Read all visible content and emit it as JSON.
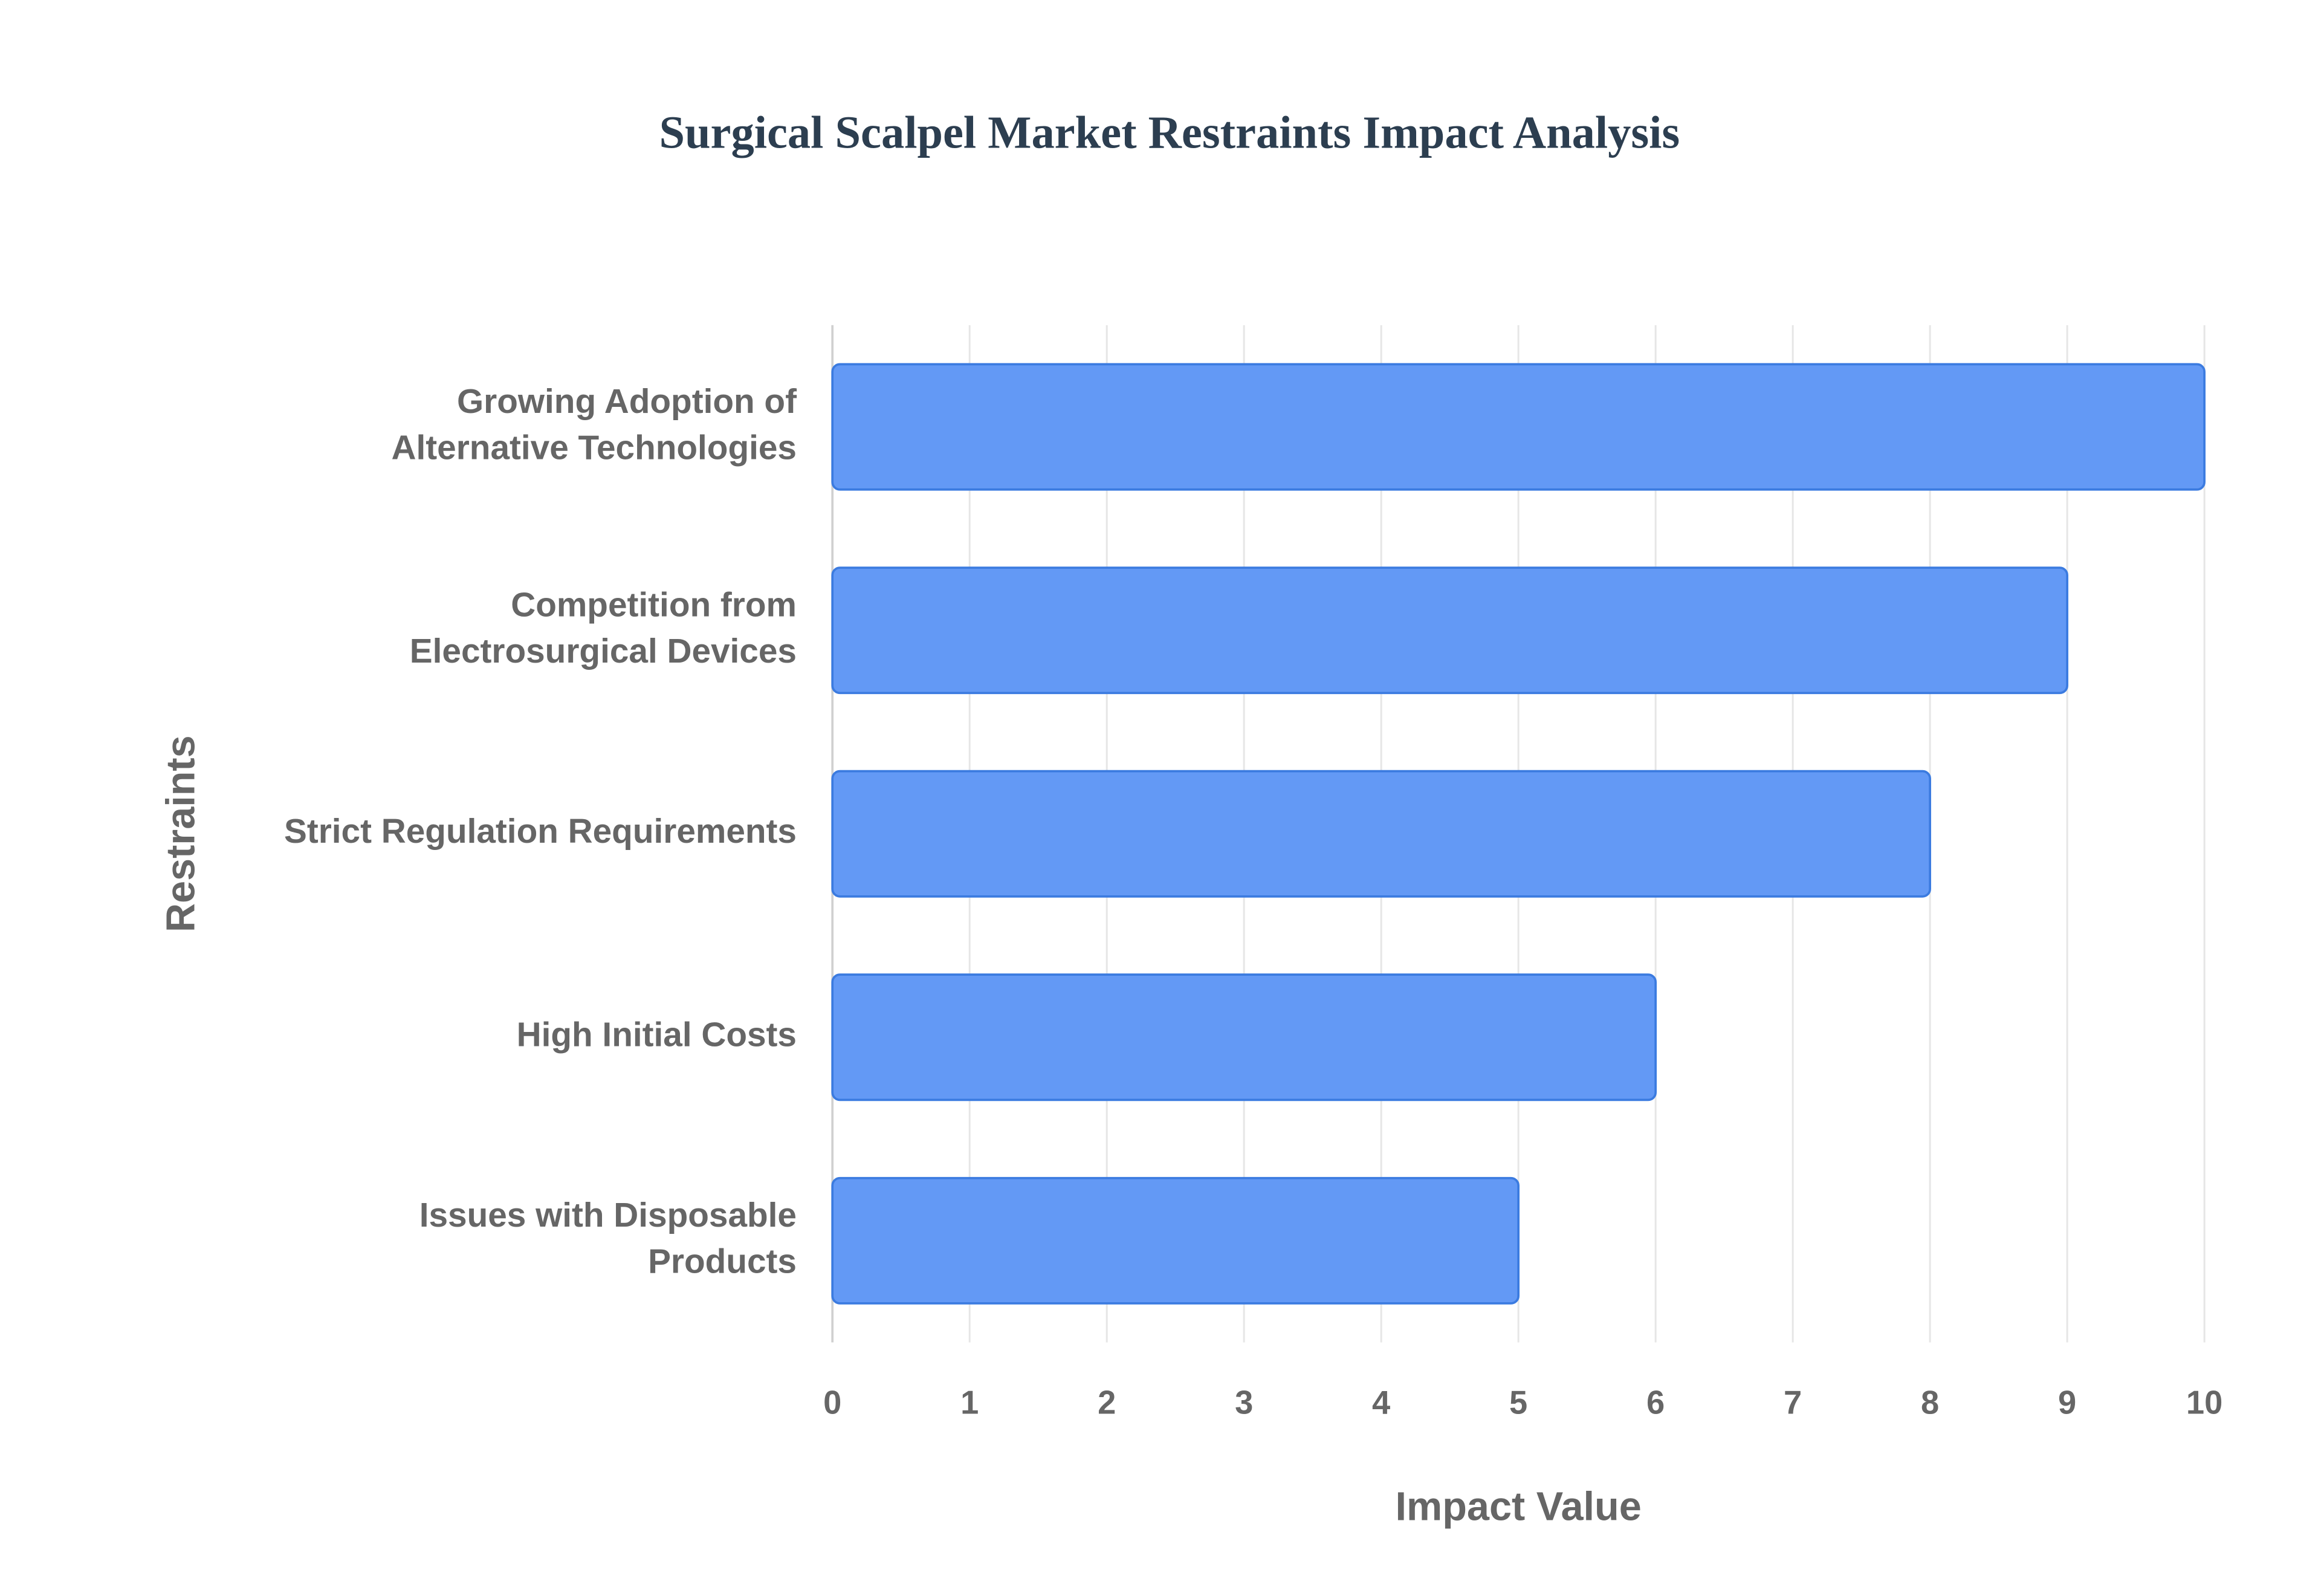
{
  "chart_data": {
    "type": "bar",
    "orientation": "horizontal",
    "title": "Surgical Scalpel Market Restraints Impact Analysis",
    "categories": [
      [
        "Growing Adoption of",
        "Alternative Technologies"
      ],
      [
        "Competition from",
        "Electrosurgical Devices"
      ],
      [
        "Strict Regulation Requirements"
      ],
      [
        "High Initial Costs"
      ],
      [
        "Issues with Disposable",
        "Products"
      ]
    ],
    "values": [
      10,
      9,
      8,
      6,
      5
    ],
    "color": "#6399f5",
    "edge_color": "#3b7be0",
    "xlabel": "Impact Value",
    "ylabel": "Restraints",
    "xlim": [
      0,
      10
    ],
    "xticks": [
      0,
      1,
      2,
      3,
      4,
      5,
      6,
      7,
      8,
      9,
      10
    ],
    "grid": true
  }
}
